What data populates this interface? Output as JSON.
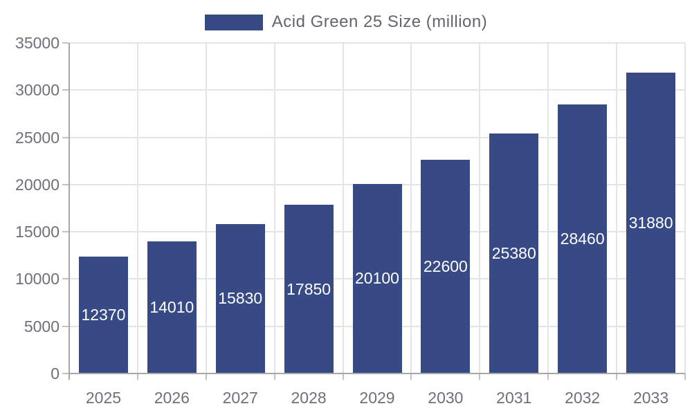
{
  "chart_data": {
    "type": "bar",
    "title": "Acid Green 25 Size (million)",
    "categories": [
      "2025",
      "2026",
      "2027",
      "2028",
      "2029",
      "2030",
      "2031",
      "2032",
      "2033"
    ],
    "series": [
      {
        "name": "Acid Green 25 Size (million)",
        "values": [
          12370,
          14010,
          15830,
          17850,
          20100,
          22600,
          25380,
          28460,
          31880
        ]
      }
    ],
    "xlabel": "",
    "ylabel": "",
    "ylim": [
      0,
      35000
    ],
    "yticks": [
      0,
      5000,
      10000,
      15000,
      20000,
      25000,
      30000,
      35000
    ],
    "grid": true,
    "legend_position": "top-center",
    "value_label_position": "inside-center"
  },
  "legend": {
    "items": [
      {
        "label": "Acid Green 25 Size (million)",
        "color": "#374a86"
      }
    ]
  },
  "colors": {
    "bar": "#374a86",
    "grid_line": "#e4e4e4",
    "axis_line": "#a7a7a7",
    "tick_mark": "#c2c2c2",
    "axis_text": "#6e7079",
    "legend_text": "#62656b",
    "value_label": "#ffffff",
    "background": "#ffffff"
  }
}
